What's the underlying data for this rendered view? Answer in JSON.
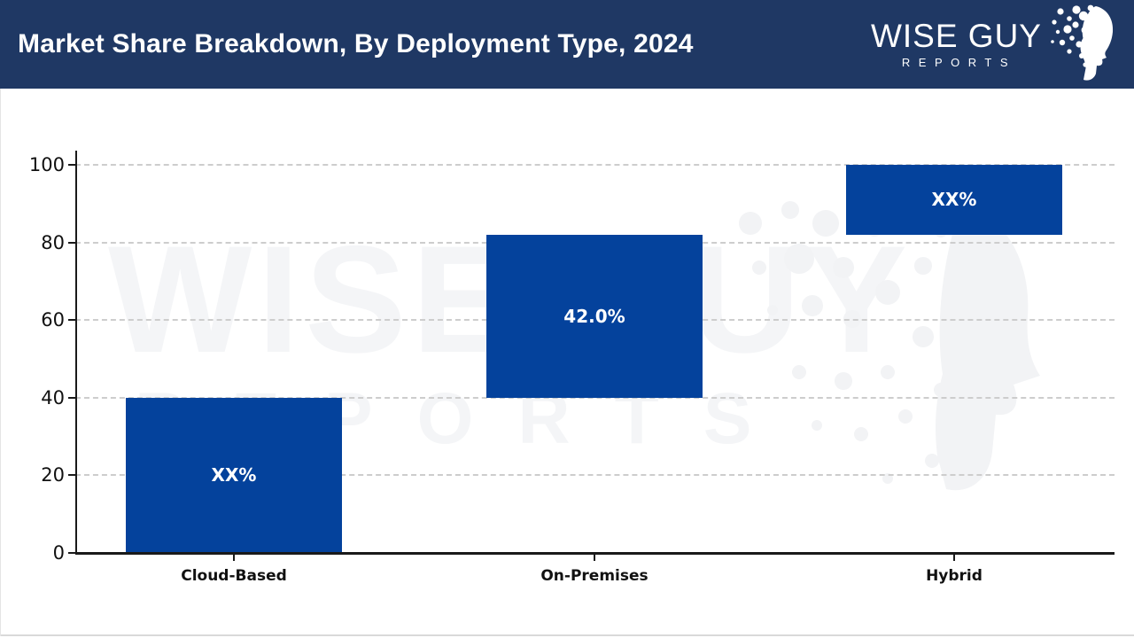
{
  "header": {
    "title": "Market Share Breakdown, By Deployment Type, 2024",
    "logo": {
      "line1": "WISE GUY",
      "line2": "REPORTS"
    }
  },
  "watermark": {
    "line1": "WISE GUY",
    "line2": "REPORTS"
  },
  "chart_data": {
    "type": "bar",
    "subtype": "waterfall",
    "title": "Market Share Breakdown, By Deployment Type, 2024",
    "categories": [
      "Cloud-Based",
      "On-Premises",
      "Hybrid"
    ],
    "segments": [
      {
        "category": "Cloud-Based",
        "start": 0,
        "end": 40,
        "label": "XX%"
      },
      {
        "category": "On-Premises",
        "start": 40,
        "end": 82,
        "label": "42.0%"
      },
      {
        "category": "Hybrid",
        "start": 82,
        "end": 100,
        "label": "XX%"
      }
    ],
    "ylim": [
      0,
      100
    ],
    "yticks": [
      0,
      20,
      40,
      60,
      80,
      100
    ],
    "xlabel": "",
    "ylabel": "",
    "grid": "horizontal-dashed",
    "legend": "none",
    "colors": {
      "bar": "#04429C",
      "bar_label": "#FFFFFF",
      "header_bg": "#1F3864",
      "header_text": "#FFFFFF",
      "gridline": "#CDCDCD",
      "axis": "#1A1A1A",
      "watermark": "#F4F5F7"
    }
  }
}
